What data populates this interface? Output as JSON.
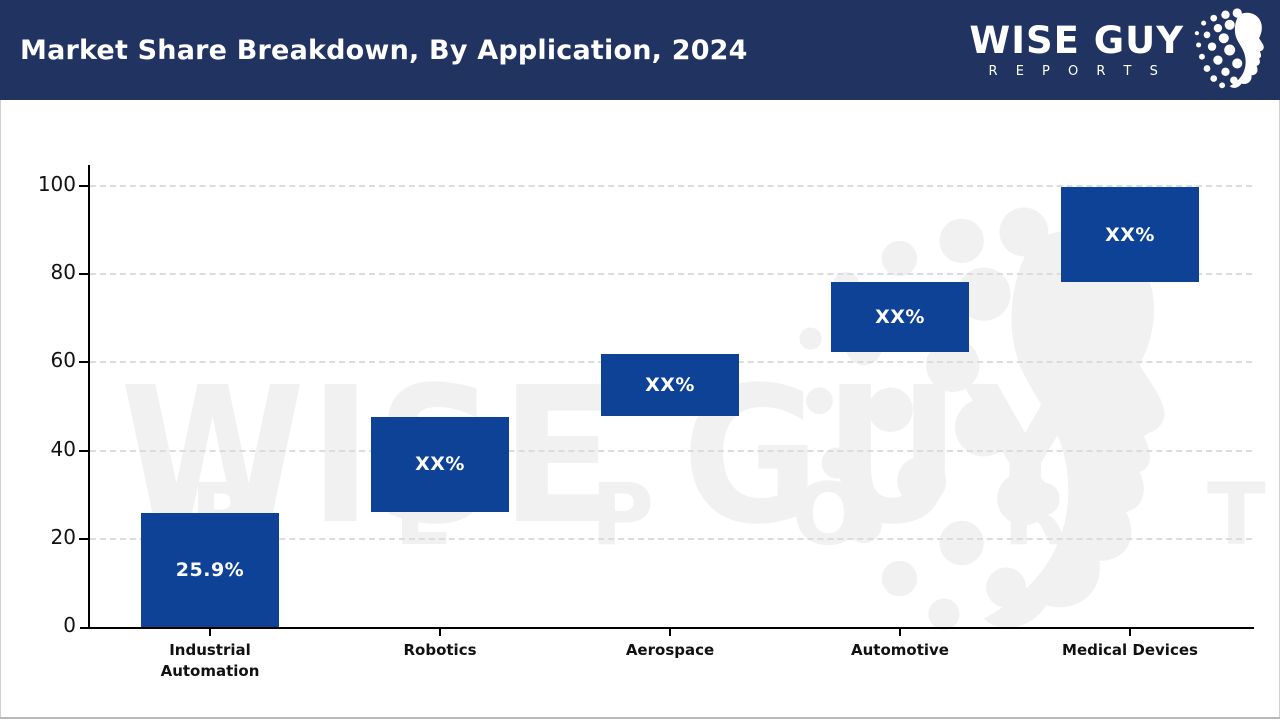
{
  "header": {
    "title": "Market Share Breakdown, By Application, 2024",
    "bg_color": "#203361",
    "text_color": "#ffffff",
    "logo": {
      "wordmark": "WISE GUY",
      "subtext": "R E P O R T S"
    }
  },
  "watermark": {
    "wordmark": "WISE GUY",
    "subtext": "R E P O R T S"
  },
  "chart_data": {
    "type": "bar",
    "subtype": "waterfall",
    "title": "Market Share Breakdown, By Application, 2024",
    "categories": [
      "Industrial Automation",
      "Robotics",
      "Aerospace",
      "Automotive",
      "Medical Devices"
    ],
    "series": [
      {
        "name": "Market share segment (%)",
        "segments": [
          {
            "category": "Industrial Automation",
            "start": 0,
            "end": 25.9,
            "label": "25.9%"
          },
          {
            "category": "Robotics",
            "start": 26.1,
            "end": 47.6,
            "label": "XX%"
          },
          {
            "category": "Aerospace",
            "start": 47.8,
            "end": 61.9,
            "label": "XX%"
          },
          {
            "category": "Automotive",
            "start": 62.4,
            "end": 78.2,
            "label": "XX%"
          },
          {
            "category": "Medical Devices",
            "start": 78.2,
            "end": 99.8,
            "label": "XX%"
          }
        ]
      }
    ],
    "xlabel": "",
    "ylabel": "",
    "ylim": [
      0,
      100
    ],
    "yticks": [
      0,
      20,
      40,
      60,
      80,
      100
    ],
    "grid": "horizontal-dashed",
    "grid_color": "#dcdcdc",
    "legend": "none",
    "bar_color": "#0d4296",
    "bar_label_color": "#ffffff",
    "axis_color": "#000000"
  }
}
